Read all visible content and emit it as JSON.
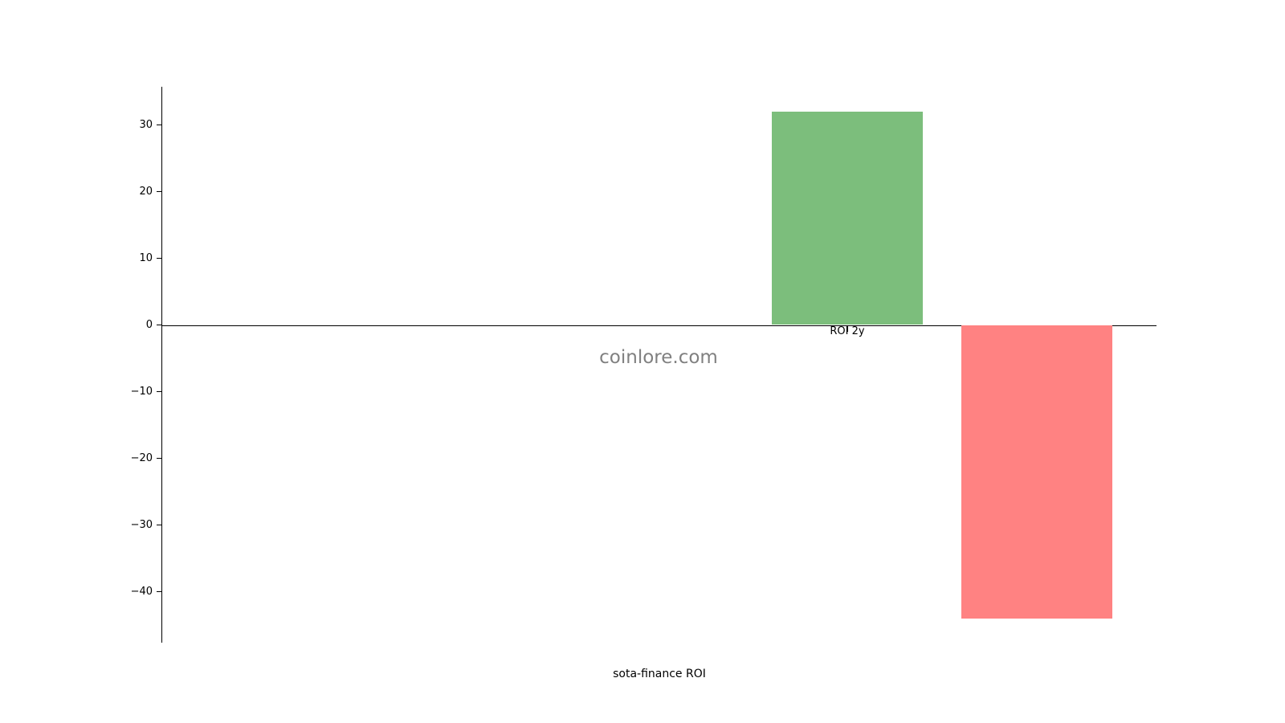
{
  "chart_data": {
    "type": "bar",
    "title": "",
    "categories": [
      "ROI 2y",
      ""
    ],
    "values": [
      32,
      -44
    ],
    "bar_colors": [
      "#7cbe7c",
      "#ff8282"
    ],
    "yticks": [
      30,
      20,
      10,
      0,
      -10,
      -20,
      -30,
      -40
    ],
    "ylim": [
      -47.5,
      35.7
    ],
    "xlabel": "sota-finance ROI",
    "watermark": "coinlore.com",
    "grid": false,
    "legend": "none",
    "axis_color": "#000000",
    "tick_label_color": "#000000",
    "watermark_color": "#808080",
    "background_color": "#ffffff"
  }
}
